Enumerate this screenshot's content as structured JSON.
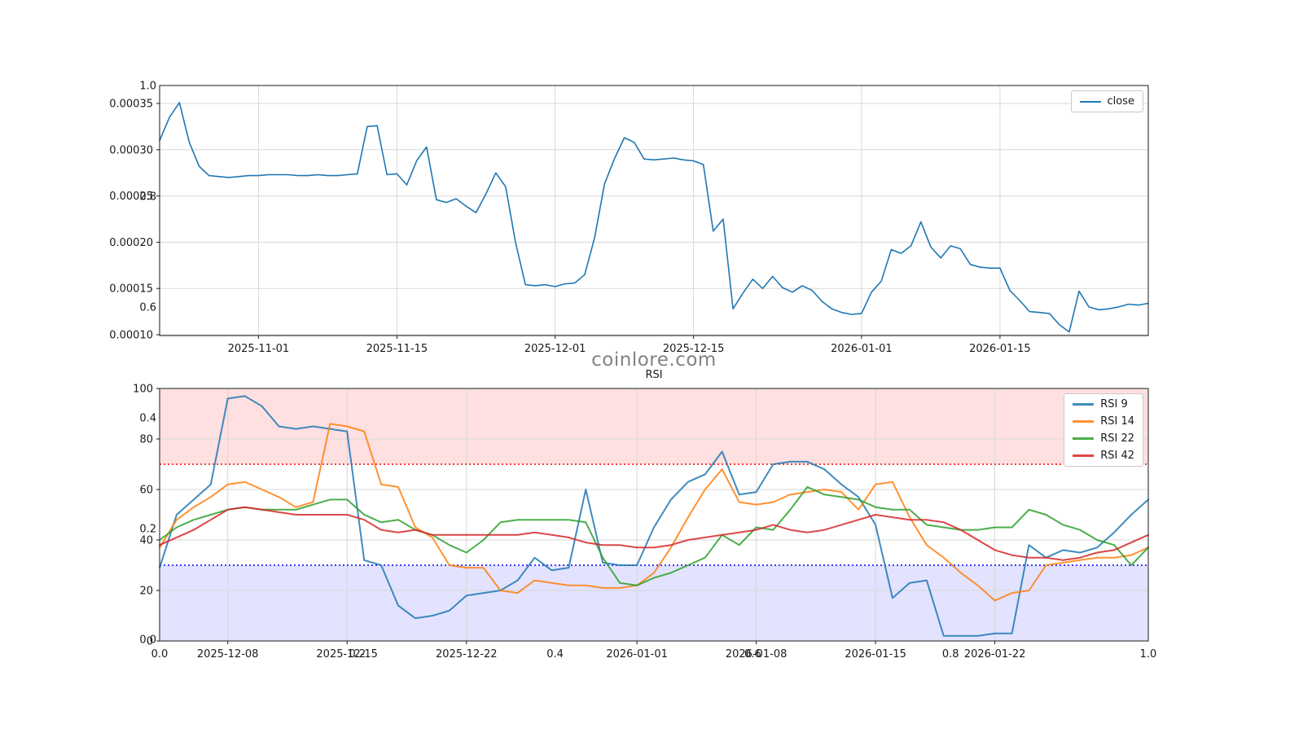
{
  "watermark": "coinlore.com",
  "overlay_axis": {
    "left": [
      "1.0",
      "0.8",
      "0.6",
      "0.4",
      "0.2",
      "0.0"
    ],
    "bottom": [
      "0.0",
      "0.2",
      "0.4",
      "0.6",
      "0.8",
      "1.0"
    ]
  },
  "chart_data": [
    {
      "type": "line",
      "title": "",
      "grid": true,
      "legend_position": "upper right",
      "ylim": [
        9.91e-05,
        0.0003694
      ],
      "ytick_values": [
        0.0001,
        0.00015,
        0.0002,
        0.00025,
        0.0003,
        0.00035
      ],
      "yticks": [
        "0.00010",
        "0.00015",
        "0.00020",
        "0.00025",
        "0.00030",
        "0.00035"
      ],
      "xticks": [
        "2025-11-01",
        "2025-11-15",
        "2025-12-01",
        "2025-12-15",
        "2026-01-01",
        "2026-01-15"
      ],
      "dates": [
        "2025-10-22",
        "2025-10-23",
        "2025-10-24",
        "2025-10-25",
        "2025-10-26",
        "2025-10-27",
        "2025-10-28",
        "2025-10-29",
        "2025-10-30",
        "2025-10-31",
        "2025-11-01",
        "2025-11-02",
        "2025-11-03",
        "2025-11-04",
        "2025-11-05",
        "2025-11-06",
        "2025-11-07",
        "2025-11-08",
        "2025-11-09",
        "2025-11-10",
        "2025-11-11",
        "2025-11-12",
        "2025-11-13",
        "2025-11-14",
        "2025-11-15",
        "2025-11-16",
        "2025-11-17",
        "2025-11-18",
        "2025-11-19",
        "2025-11-20",
        "2025-11-21",
        "2025-11-22",
        "2025-11-23",
        "2025-11-24",
        "2025-11-25",
        "2025-11-26",
        "2025-11-27",
        "2025-11-28",
        "2025-11-29",
        "2025-11-30",
        "2025-12-01",
        "2025-12-02",
        "2025-12-03",
        "2025-12-04",
        "2025-12-05",
        "2025-12-06",
        "2025-12-07",
        "2025-12-08",
        "2025-12-09",
        "2025-12-10",
        "2025-12-11",
        "2025-12-12",
        "2025-12-13",
        "2025-12-14",
        "2025-12-15",
        "2025-12-16",
        "2025-12-17",
        "2025-12-18",
        "2025-12-19",
        "2025-12-20",
        "2025-12-21",
        "2025-12-22",
        "2025-12-23",
        "2025-12-24",
        "2025-12-25",
        "2025-12-26",
        "2025-12-27",
        "2025-12-28",
        "2025-12-29",
        "2025-12-30",
        "2025-12-31",
        "2026-01-01",
        "2026-01-02",
        "2026-01-03",
        "2026-01-04",
        "2026-01-05",
        "2026-01-06",
        "2026-01-07",
        "2026-01-08",
        "2026-01-09",
        "2026-01-10",
        "2026-01-11",
        "2026-01-12",
        "2026-01-13",
        "2026-01-14",
        "2026-01-15",
        "2026-01-16",
        "2026-01-17",
        "2026-01-18",
        "2026-01-19",
        "2026-01-20",
        "2026-01-21",
        "2026-01-22",
        "2026-01-23",
        "2026-01-24",
        "2026-01-25",
        "2026-01-26",
        "2026-01-27",
        "2026-01-28",
        "2026-01-29",
        "2026-01-30"
      ],
      "series": [
        {
          "name": "close",
          "color": "#1f77b4",
          "values": [
            0.00031,
            0.000335,
            0.000351,
            0.000308,
            0.000282,
            0.000272,
            0.000271,
            0.00027,
            0.000271,
            0.000272,
            0.000272,
            0.000273,
            0.000273,
            0.000273,
            0.000272,
            0.000272,
            0.000273,
            0.000272,
            0.000272,
            0.000273,
            0.000274,
            0.000325,
            0.000326,
            0.000273,
            0.000274,
            0.000262,
            0.000288,
            0.000303,
            0.000246,
            0.000243,
            0.000247,
            0.000239,
            0.000232,
            0.000252,
            0.000275,
            0.00026,
            0.0002,
            0.000154,
            0.000153,
            0.000154,
            0.000152,
            0.000155,
            0.000156,
            0.000165,
            0.000205,
            0.000263,
            0.00029,
            0.000313,
            0.000308,
            0.00029,
            0.000289,
            0.00029,
            0.000291,
            0.000289,
            0.000288,
            0.000284,
            0.000212,
            0.000225,
            0.000128,
            0.000145,
            0.00016,
            0.00015,
            0.000163,
            0.000151,
            0.000146,
            0.000153,
            0.000148,
            0.000136,
            0.000128,
            0.000124,
            0.000122,
            0.000123,
            0.000146,
            0.000158,
            0.000192,
            0.000188,
            0.000196,
            0.000222,
            0.000195,
            0.000183,
            0.000196,
            0.000193,
            0.000176,
            0.000173,
            0.000172,
            0.000172,
            0.000148,
            0.000137,
            0.000125,
            0.000124,
            0.000123,
            0.000111,
            0.000103,
            0.000147,
            0.00013,
            0.000127,
            0.000128,
            0.00013,
            0.000133,
            0.000132,
            0.000134
          ]
        }
      ]
    },
    {
      "type": "line",
      "title": "RSI",
      "grid": true,
      "legend_position": "upper right",
      "ylim": [
        0,
        100
      ],
      "ytick_values": [
        0,
        20,
        40,
        60,
        80,
        100
      ],
      "yticks": [
        "0",
        "20",
        "40",
        "60",
        "80",
        "100"
      ],
      "xticks": [
        "2025-12-08",
        "2025-12-15",
        "2025-12-22",
        "2026-01-01",
        "2026-01-08",
        "2026-01-15",
        "2026-01-22"
      ],
      "bands": [
        {
          "name": "overbought",
          "y1": 70,
          "y2": 100,
          "color": "rgba(255,0,0,0.12)"
        },
        {
          "name": "oversold",
          "y1": 0,
          "y2": 30,
          "color": "rgba(0,0,255,0.11)"
        }
      ],
      "hlines": [
        {
          "name": "overbought-threshold",
          "y": 70,
          "color": "#ff0000"
        },
        {
          "name": "oversold-threshold",
          "y": 30,
          "color": "#0000ff"
        }
      ],
      "dates": [
        "2025-12-04",
        "2025-12-05",
        "2025-12-06",
        "2025-12-07",
        "2025-12-08",
        "2025-12-09",
        "2025-12-10",
        "2025-12-11",
        "2025-12-12",
        "2025-12-13",
        "2025-12-14",
        "2025-12-15",
        "2025-12-16",
        "2025-12-17",
        "2025-12-18",
        "2025-12-19",
        "2025-12-20",
        "2025-12-21",
        "2025-12-22",
        "2025-12-23",
        "2025-12-24",
        "2025-12-25",
        "2025-12-26",
        "2025-12-27",
        "2025-12-28",
        "2025-12-29",
        "2025-12-30",
        "2025-12-31",
        "2026-01-01",
        "2026-01-02",
        "2026-01-03",
        "2026-01-04",
        "2026-01-05",
        "2026-01-06",
        "2026-01-07",
        "2026-01-08",
        "2026-01-09",
        "2026-01-10",
        "2026-01-11",
        "2026-01-12",
        "2026-01-13",
        "2026-01-14",
        "2026-01-15",
        "2026-01-16",
        "2026-01-17",
        "2026-01-18",
        "2026-01-19",
        "2026-01-20",
        "2026-01-21",
        "2026-01-22",
        "2026-01-23",
        "2026-01-24",
        "2026-01-25",
        "2026-01-26",
        "2026-01-27",
        "2026-01-28",
        "2026-01-29",
        "2026-01-30",
        "2026-01-31"
      ],
      "series": [
        {
          "name": "RSI 9",
          "color": "#1f77b4",
          "values": [
            29,
            50,
            56,
            62,
            96,
            97,
            93,
            85,
            84,
            85,
            84,
            83,
            32,
            30,
            14,
            9,
            10,
            12,
            18,
            19,
            20,
            24,
            33,
            28,
            29,
            60,
            31,
            30,
            30,
            45,
            56,
            63,
            66,
            75,
            58,
            59,
            70,
            71,
            71,
            68,
            62,
            57,
            46,
            17,
            23,
            24,
            2,
            2,
            2,
            3,
            3,
            38,
            33,
            36,
            35,
            37,
            43,
            50,
            56
          ]
        },
        {
          "name": "RSI 14",
          "color": "#ff7f0e",
          "values": [
            37,
            48,
            53,
            57,
            62,
            63,
            60,
            57,
            53,
            55,
            86,
            85,
            83,
            62,
            61,
            45,
            41,
            30,
            29,
            29,
            20,
            19,
            24,
            23,
            22,
            22,
            21,
            21,
            22,
            27,
            37,
            49,
            60,
            68,
            55,
            54,
            55,
            58,
            59,
            60,
            59,
            52,
            62,
            63,
            49,
            38,
            33,
            27,
            22,
            16,
            19,
            20,
            30,
            31,
            32,
            33,
            33,
            34,
            37
          ]
        },
        {
          "name": "RSI 22",
          "color": "#2ca02c",
          "values": [
            40,
            45,
            48,
            50,
            52,
            53,
            52,
            52,
            52,
            54,
            56,
            56,
            50,
            47,
            48,
            44,
            42,
            38,
            35,
            40,
            47,
            48,
            48,
            48,
            48,
            47,
            33,
            23,
            22,
            25,
            27,
            30,
            33,
            42,
            38,
            45,
            44,
            52,
            61,
            58,
            57,
            56,
            53,
            52,
            52,
            46,
            45,
            44,
            44,
            45,
            45,
            52,
            50,
            46,
            44,
            40,
            38,
            30,
            37
          ]
        },
        {
          "name": "RSI 42",
          "color": "#d62728",
          "values": [
            38,
            41,
            44,
            48,
            52,
            53,
            52,
            51,
            50,
            50,
            50,
            50,
            48,
            44,
            43,
            44,
            42,
            42,
            42,
            42,
            42,
            42,
            43,
            42,
            41,
            39,
            38,
            38,
            37,
            37,
            38,
            40,
            41,
            42,
            43,
            44,
            46,
            44,
            43,
            44,
            46,
            48,
            50,
            49,
            48,
            48,
            47,
            44,
            40,
            36,
            34,
            33,
            33,
            32,
            33,
            35,
            36,
            39,
            42
          ]
        }
      ]
    }
  ]
}
